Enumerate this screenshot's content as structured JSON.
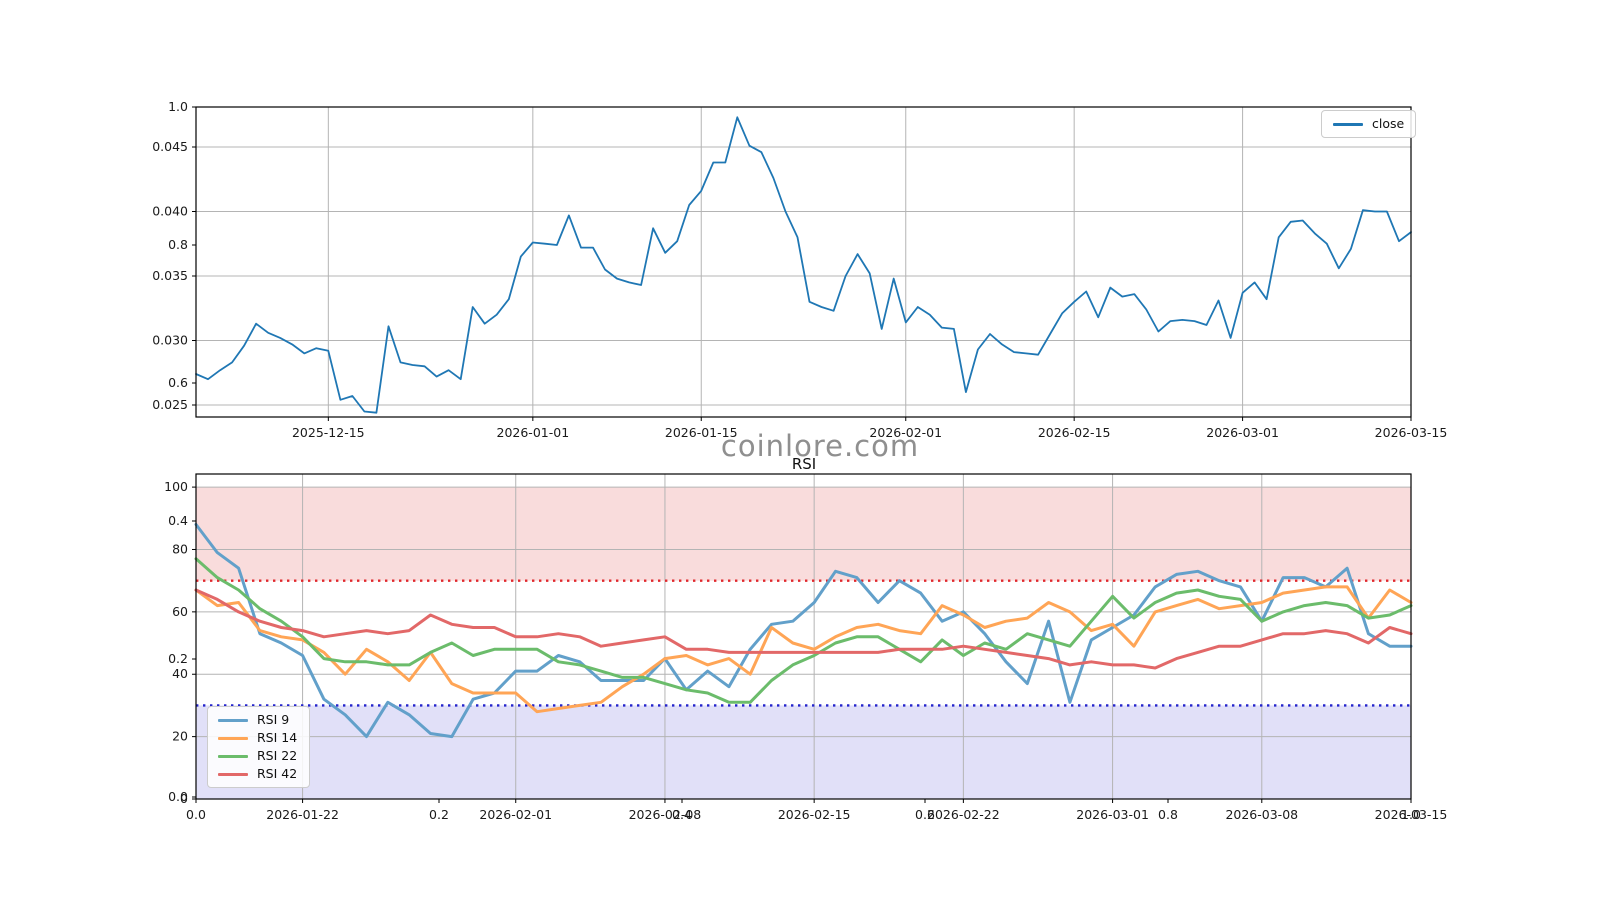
{
  "watermark": "coinlore.com",
  "overlay_axis": {
    "y_ticks": {
      "labels": [
        "1.0",
        "0.8",
        "0.6",
        "0.4",
        "0.2",
        "0.0"
      ],
      "values": [
        1.0,
        0.8,
        0.6,
        0.4,
        0.2,
        0.0
      ]
    },
    "x_ticks": {
      "labels": [
        "0.0",
        "0.2",
        "0.4",
        "0.6",
        "0.8",
        "1.0"
      ],
      "values": [
        0.0,
        0.2,
        0.4,
        0.6,
        0.8,
        1.0
      ]
    }
  },
  "chart_data": [
    {
      "type": "line",
      "name": "price",
      "title": "",
      "legend_position": "upper right",
      "grid": true,
      "x_range_days": [
        0,
        101
      ],
      "x_ticks": {
        "labels": [
          "2025-12-15",
          "2026-01-01",
          "2026-01-15",
          "2026-02-01",
          "2026-02-15",
          "2026-03-01",
          "2026-03-15"
        ],
        "day_offsets": [
          11,
          28,
          42,
          59,
          73,
          87,
          101
        ]
      },
      "y_ticks": {
        "labels": [
          "0.045",
          "0.040",
          "0.035",
          "0.030",
          "0.025"
        ],
        "values": [
          0.045,
          0.04,
          0.035,
          0.03,
          0.025
        ]
      },
      "ylim": [
        0.02407,
        0.0481
      ],
      "series": [
        {
          "name": "close",
          "color": "#1f77b4",
          "width": 1.8,
          "values": [
            0.0274,
            0.027,
            0.0277,
            0.0283,
            0.0296,
            0.0313,
            0.0306,
            0.0302,
            0.0297,
            0.029,
            0.0294,
            0.0292,
            0.0254,
            0.0257,
            0.0245,
            0.0244,
            0.0311,
            0.0283,
            0.0281,
            0.028,
            0.0272,
            0.0277,
            0.027,
            0.0326,
            0.0313,
            0.032,
            0.0332,
            0.0365,
            0.0376,
            0.0375,
            0.0374,
            0.0397,
            0.0372,
            0.0372,
            0.0355,
            0.0348,
            0.0345,
            0.0343,
            0.0387,
            0.0368,
            0.0377,
            0.0405,
            0.0416,
            0.0438,
            0.0438,
            0.0473,
            0.0451,
            0.0446,
            0.0426,
            0.04,
            0.038,
            0.033,
            0.0326,
            0.0323,
            0.035,
            0.0367,
            0.0352,
            0.0309,
            0.0348,
            0.0314,
            0.0326,
            0.032,
            0.031,
            0.0309,
            0.026,
            0.0293,
            0.0305,
            0.0297,
            0.0291,
            0.029,
            0.0289,
            0.0305,
            0.0321,
            0.033,
            0.0338,
            0.0318,
            0.0341,
            0.0334,
            0.0336,
            0.0324,
            0.0307,
            0.0315,
            0.0316,
            0.0315,
            0.0312,
            0.0331,
            0.0302,
            0.0337,
            0.0345,
            0.0332,
            0.038,
            0.0392,
            0.0393,
            0.0383,
            0.0375,
            0.0356,
            0.0371,
            0.0401,
            0.04,
            0.04,
            0.0377,
            0.0384
          ]
        }
      ]
    },
    {
      "type": "line",
      "name": "rsi",
      "title": "RSI",
      "legend_position": "lower left",
      "grid": true,
      "x_range_days": [
        0,
        57
      ],
      "x_ticks": {
        "labels": [
          "2026-01-22",
          "2026-02-01",
          "2026-02-08",
          "2026-02-15",
          "2026-02-22",
          "2026-03-01",
          "2026-03-08",
          "2026-03-15"
        ],
        "day_offsets": [
          5,
          15,
          22,
          29,
          36,
          43,
          50,
          57
        ]
      },
      "y_ticks": {
        "labels": [
          "100",
          "80",
          "60",
          "40",
          "20",
          "0"
        ],
        "values": [
          100,
          80,
          60,
          40,
          20,
          0
        ]
      },
      "ylim": [
        0,
        104.2
      ],
      "bands": [
        {
          "name": "overbought-band",
          "from": 70,
          "to": 100,
          "color": "#f9dcdc"
        },
        {
          "name": "oversold-band",
          "from": 0,
          "to": 30,
          "color": "#e1e0f8"
        }
      ],
      "threshold_lines": [
        {
          "name": "overbought-threshold",
          "value": 70,
          "color": "#e0282d"
        },
        {
          "name": "oversold-threshold",
          "value": 30,
          "color": "#2323cc"
        }
      ],
      "series": [
        {
          "name": "RSI 9",
          "color": "#62a0ca",
          "width": 3,
          "values": [
            88,
            79,
            74,
            53,
            50,
            46,
            32,
            27,
            20,
            31,
            27,
            21,
            20,
            32,
            34,
            41,
            41,
            46,
            44,
            38,
            38,
            38,
            45,
            35,
            41,
            36,
            48,
            56,
            57,
            63,
            73,
            71,
            63,
            70,
            66,
            57,
            60,
            53,
            44,
            37,
            57,
            31,
            51,
            55,
            59,
            68,
            72,
            73,
            70,
            68,
            57,
            71,
            71,
            68,
            74,
            53,
            49,
            49
          ]
        },
        {
          "name": "RSI 14",
          "color": "#ffa556",
          "width": 3,
          "values": [
            67,
            62,
            63,
            54,
            52,
            51,
            47,
            40,
            48,
            44,
            38,
            47,
            37,
            34,
            34,
            34,
            28,
            29,
            30,
            31,
            36,
            40,
            45,
            46,
            43,
            45,
            40,
            55,
            50,
            48,
            52,
            55,
            56,
            54,
            53,
            62,
            59,
            55,
            57,
            58,
            63,
            60,
            54,
            56,
            49,
            60,
            62,
            64,
            61,
            62,
            63,
            66,
            67,
            68,
            68,
            58,
            67,
            63
          ]
        },
        {
          "name": "RSI 22",
          "color": "#6bbc6b",
          "width": 3,
          "values": [
            77,
            71,
            67,
            61,
            57,
            52,
            45,
            44,
            44,
            43,
            43,
            47,
            50,
            46,
            48,
            48,
            48,
            44,
            43,
            41,
            39,
            39,
            37,
            35,
            34,
            31,
            31,
            38,
            43,
            46,
            50,
            52,
            52,
            48,
            44,
            51,
            46,
            50,
            48,
            53,
            51,
            49,
            57,
            65,
            58,
            63,
            66,
            67,
            65,
            64,
            57,
            60,
            62,
            63,
            62,
            58,
            59,
            62
          ]
        },
        {
          "name": "RSI 42",
          "color": "#e26868",
          "width": 3,
          "values": [
            67,
            64,
            60,
            57,
            55,
            54,
            52,
            53,
            54,
            53,
            54,
            59,
            56,
            55,
            55,
            52,
            52,
            53,
            52,
            49,
            50,
            51,
            52,
            48,
            48,
            47,
            47,
            47,
            47,
            47,
            47,
            47,
            47,
            48,
            48,
            48,
            49,
            48,
            47,
            46,
            45,
            43,
            44,
            43,
            43,
            42,
            45,
            47,
            49,
            49,
            51,
            53,
            53,
            54,
            53,
            50,
            55,
            53
          ]
        }
      ]
    }
  ]
}
